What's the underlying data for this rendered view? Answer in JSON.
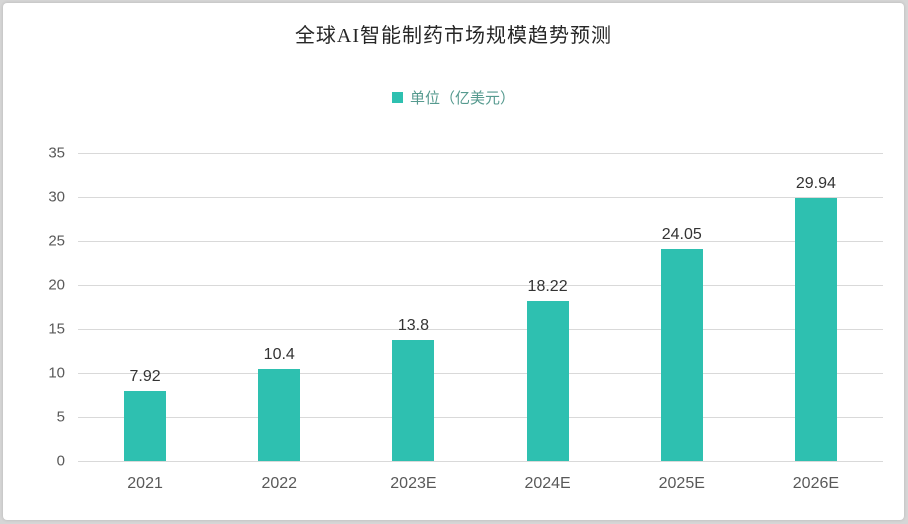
{
  "chart_data": {
    "type": "bar",
    "title": "全球AI智能制药市场规模趋势预测",
    "legend_label": "单位（亿美元）",
    "categories": [
      "2021",
      "2022",
      "2023E",
      "2024E",
      "2025E",
      "2026E"
    ],
    "values": [
      7.92,
      10.4,
      13.8,
      18.22,
      24.05,
      29.94
    ],
    "value_labels": [
      "7.92",
      "10.4",
      "13.8",
      "18.22",
      "24.05",
      "29.94"
    ],
    "ylabel": "",
    "xlabel": "",
    "ylim": [
      0,
      35
    ],
    "ytick_step": 5,
    "ytick_labels": [
      "0",
      "5",
      "10",
      "15",
      "20",
      "25",
      "30",
      "35"
    ],
    "grid": true,
    "legend_position": "top-center",
    "colors": {
      "bar": "#2EC0B0",
      "gridline": "#D9D9D9",
      "axis_text": "#595959",
      "data_label": "#333333",
      "title_text": "#262626",
      "legend_text": "#569A8F",
      "card_background": "#FFFFFF",
      "page_background": "#D6D6D6"
    }
  }
}
